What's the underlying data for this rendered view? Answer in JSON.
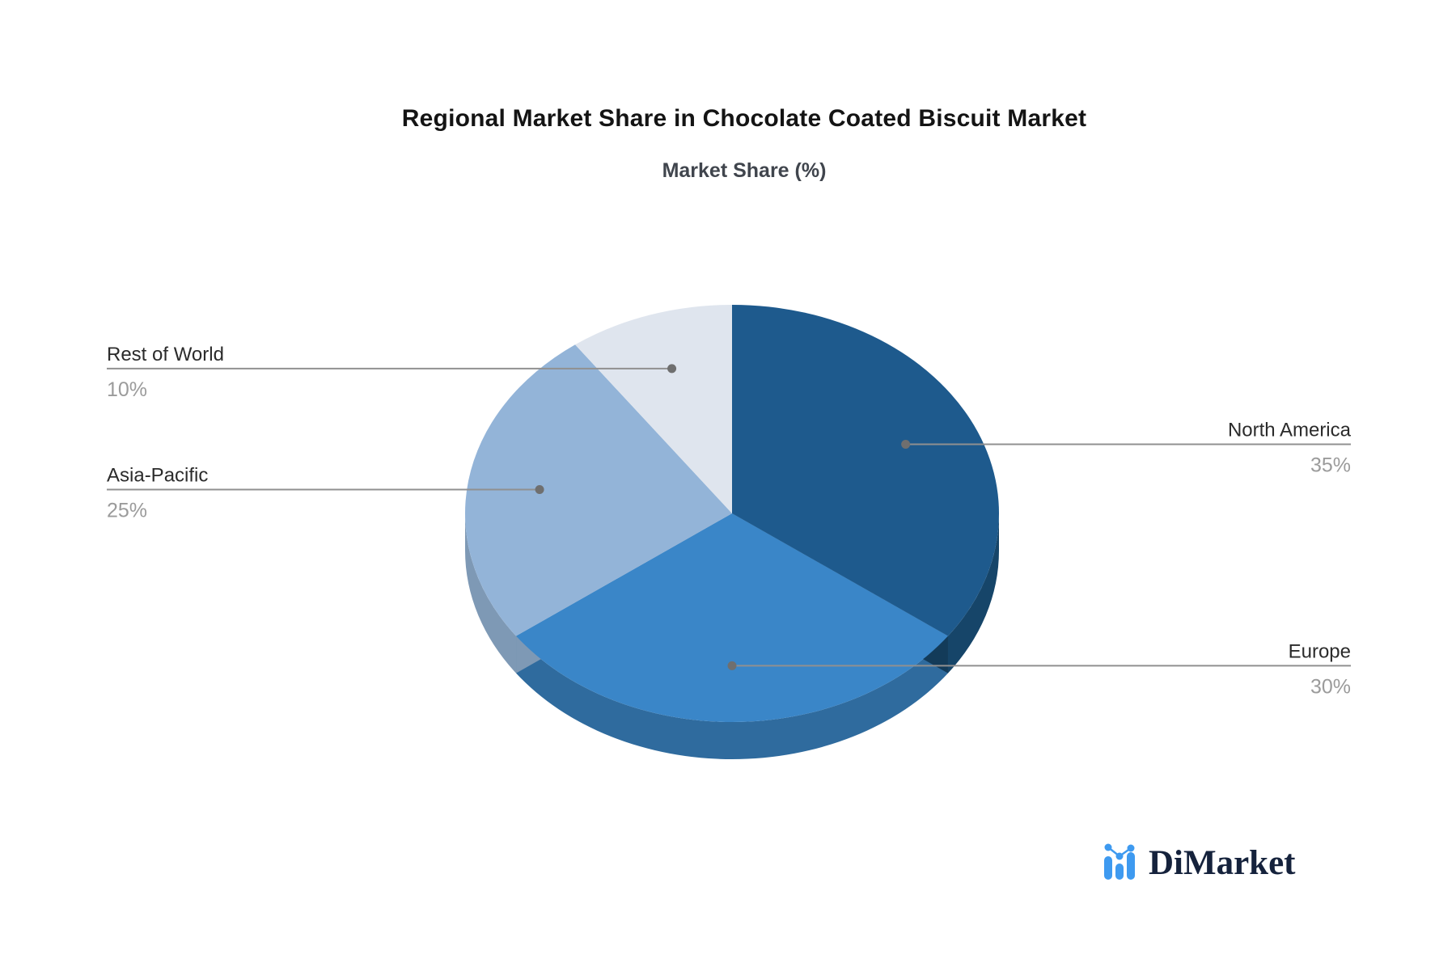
{
  "title": "Regional Market Share in Chocolate Coated Biscuit Market",
  "subtitle": "Market Share (%)",
  "chart_data": {
    "type": "pie",
    "title": "Regional Market Share in Chocolate Coated Biscuit Market",
    "subtitle": "Market Share (%)",
    "unit": "%",
    "direction": "clockwise",
    "start_angle_deg": 0,
    "legend_position": "callout-labels",
    "effect_3d": true,
    "slices": [
      {
        "name": "North America",
        "value": 35,
        "pct_label": "35%",
        "color": "#1e5a8d",
        "side_color": "#164569",
        "label_side": "right"
      },
      {
        "name": "Europe",
        "value": 30,
        "pct_label": "30%",
        "color": "#3a86c8",
        "side_color": "#2f6b9e",
        "label_side": "right"
      },
      {
        "name": "Asia-Pacific",
        "value": 25,
        "pct_label": "25%",
        "color": "#93b4d8",
        "side_color": "#7e99b5",
        "label_side": "left"
      },
      {
        "name": "Rest of World",
        "value": 10,
        "pct_label": "10%",
        "color": "#dfe5ee",
        "side_color": "#b9c4d4",
        "label_side": "left"
      }
    ],
    "style": {
      "leader_line_color": "#909090",
      "leader_dot_color": "#6f6f6f",
      "label_text_color": "#2b2b2b",
      "value_text_color": "#9b9b9b"
    }
  },
  "logo": {
    "text": "DiMarket",
    "icon": "bar-line-chart-icon",
    "accent_color": "#3e9af0",
    "text_color": "#15223c"
  }
}
